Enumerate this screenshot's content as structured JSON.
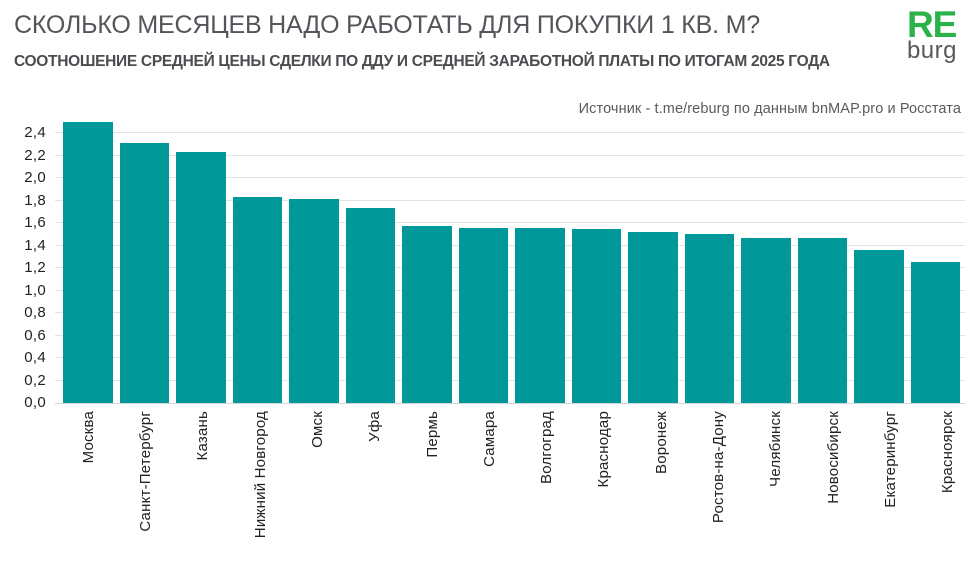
{
  "header": {
    "title": "СКОЛЬКО МЕСЯЦЕВ НАДО РАБОТАТЬ ДЛЯ ПОКУПКИ 1 КВ. М?",
    "subtitle": "СООТНОШЕНИЕ СРЕДНЕЙ ЦЕНЫ СДЕЛКИ ПО ДДУ И СРЕДНЕЙ ЗАРАБОТНОЙ ПЛАТЫ ПО ИТОГАМ 2025 ГОДА",
    "logo": {
      "top": "RE",
      "bottom": "burg",
      "green": "#2bb24a",
      "gray": "#58595b"
    }
  },
  "source": "Источник - t.me/reburg по данным bnMAP.pro и Росстата",
  "chart_data": {
    "type": "bar",
    "title": "СКОЛЬКО МЕСЯЦЕВ НАДО РАБОТАТЬ ДЛЯ ПОКУПКИ 1 КВ. М?",
    "subtitle": "СООТНОШЕНИЕ СРЕДНЕЙ ЦЕНЫ СДЕЛКИ ПО ДДУ И СРЕДНЕЙ ЗАРАБОТНОЙ ПЛАТЫ ПО ИТОГАМ 2025 ГОДА",
    "source": "Источник - t.me/reburg по данным bnMAP.pro и Росстата",
    "categories": [
      "Москва",
      "Санкт-Петербург",
      "Казань",
      "Нижний Новгород",
      "Омск",
      "Уфа",
      "Пермь",
      "Самара",
      "Волгоград",
      "Краснодар",
      "Воронеж",
      "Ростов-на-Дону",
      "Челябинск",
      "Новосибирск",
      "Екатеринбург",
      "Красноярск"
    ],
    "values": [
      2.5,
      2.31,
      2.23,
      1.83,
      1.81,
      1.73,
      1.57,
      1.56,
      1.56,
      1.55,
      1.52,
      1.5,
      1.47,
      1.47,
      1.36,
      1.25
    ],
    "xlabel": "",
    "ylabel": "",
    "ylim": [
      0,
      2.56
    ],
    "ytick_step": 0.2,
    "ytick_labels": [
      "0,0",
      "0,2",
      "0,4",
      "0,6",
      "0,8",
      "1,0",
      "1,2",
      "1,4",
      "1,6",
      "1,8",
      "2,0",
      "2,2",
      "2,4"
    ],
    "decimal_separator": ",",
    "grid": true,
    "legend": false,
    "bar_color": "#009898",
    "grid_color": "#e2e2e2",
    "axis_color": "#d5d5d5",
    "label_color": "#222226"
  }
}
